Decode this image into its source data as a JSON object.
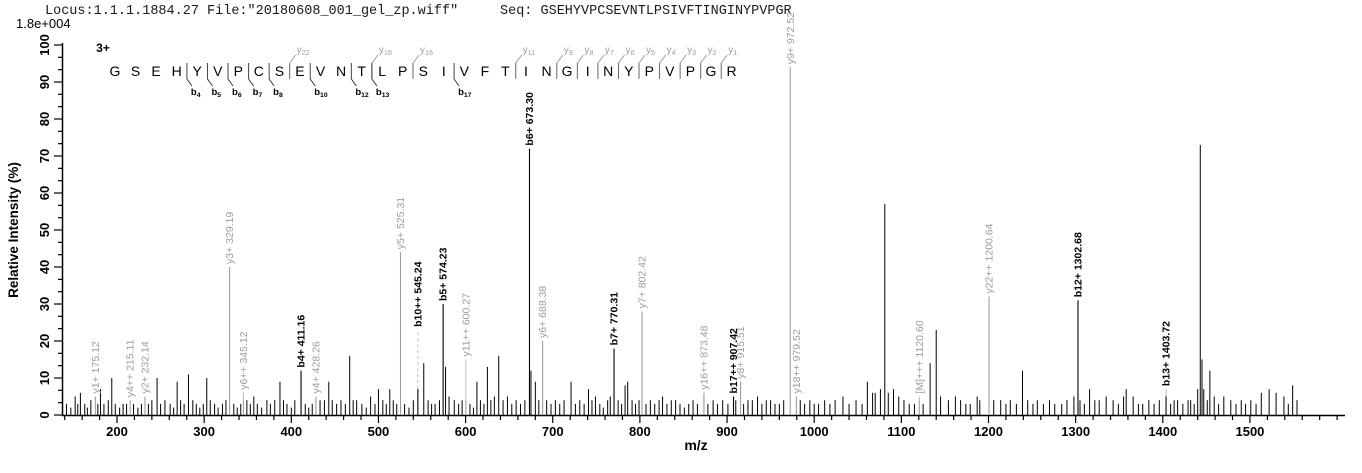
{
  "header": {
    "locus_file": "Locus:1.1.1.1884.27 File:\"20180608_001_gel_zp.wiff\"",
    "seq_label": "Seq: GSEHYVPCSEVNTLPSIVFTINGINYPVPGR",
    "max_intensity": "1.8e+004"
  },
  "peptide": {
    "charge": "3+",
    "sequence": "GSEHYVPCSEVNTLPSIVFTINGINYPVPGR",
    "y_ions": [
      {
        "name": "y22",
        "after": 9
      },
      {
        "name": "y18",
        "after": 13
      },
      {
        "name": "y16",
        "after": 15
      },
      {
        "name": "y11",
        "after": 20
      },
      {
        "name": "y9",
        "after": 22
      },
      {
        "name": "y8",
        "after": 23
      },
      {
        "name": "y7",
        "after": 24
      },
      {
        "name": "y6",
        "after": 25
      },
      {
        "name": "y5",
        "after": 26
      },
      {
        "name": "y4",
        "after": 27
      },
      {
        "name": "y3",
        "after": 28
      },
      {
        "name": "y2",
        "after": 29
      },
      {
        "name": "y1",
        "after": 30
      }
    ],
    "b_ions": [
      {
        "name": "b4",
        "after": 4
      },
      {
        "name": "b5",
        "after": 5
      },
      {
        "name": "b6",
        "after": 6
      },
      {
        "name": "b7",
        "after": 7
      },
      {
        "name": "b8",
        "after": 8
      },
      {
        "name": "b10",
        "after": 10
      },
      {
        "name": "b12",
        "after": 12
      },
      {
        "name": "b13",
        "after": 13
      },
      {
        "name": "b17",
        "after": 17
      }
    ]
  },
  "colors": {
    "y_ion": "#9d9d9d",
    "b_ion": "#000000",
    "precursor": "#9d9d9d",
    "noise": "#000000",
    "leader": "#b3b3b3",
    "background": "#ffffff"
  },
  "chart_data": {
    "type": "bar",
    "subtype": "ms2-stick-spectrum",
    "xlabel": "m/z",
    "ylabel": "Relative  Intensity (%)",
    "xlim": [
      137,
      1610
    ],
    "ylim": [
      0,
      100
    ],
    "x_major_ticks": [
      200,
      300,
      400,
      500,
      600,
      700,
      800,
      900,
      1000,
      1100,
      1200,
      1300,
      1400,
      1500
    ],
    "x_minor_step": 20,
    "y_major_ticks": [
      0,
      10,
      20,
      30,
      40,
      50,
      60,
      70,
      80,
      90,
      100
    ],
    "intensity_scale_max": "1.8e+004",
    "legend": "none",
    "grid": false,
    "labeled_peaks": [
      {
        "ion": "y1+",
        "mz": 175.12,
        "intensity": 5,
        "series": "y"
      },
      {
        "ion": "y4++",
        "mz": 215.11,
        "intensity": 4,
        "series": "y"
      },
      {
        "ion": "y2+",
        "mz": 232.14,
        "intensity": 5,
        "series": "y"
      },
      {
        "ion": "y3+",
        "mz": 329.19,
        "intensity": 40,
        "series": "y"
      },
      {
        "ion": "y6++",
        "mz": 345.12,
        "intensity": 4,
        "series": "y",
        "label_base": 6
      },
      {
        "ion": "b4+",
        "mz": 411.16,
        "intensity": 12,
        "series": "b"
      },
      {
        "ion": "y4+",
        "mz": 428.26,
        "intensity": 5,
        "series": "y"
      },
      {
        "ion": "y5+",
        "mz": 525.31,
        "intensity": 44,
        "series": "y"
      },
      {
        "ion": "b10++",
        "mz": 545.24,
        "intensity": 7,
        "series": "b",
        "label_base": 23,
        "dashed": true
      },
      {
        "ion": "b5+",
        "mz": 574.23,
        "intensity": 30,
        "series": "b"
      },
      {
        "ion": "y11++",
        "mz": 600.27,
        "intensity": 4,
        "series": "y",
        "label_base": 15
      },
      {
        "ion": "b6+",
        "mz": 673.3,
        "intensity": 72,
        "series": "b"
      },
      {
        "ion": "y6+",
        "mz": 688.38,
        "intensity": 20,
        "series": "y"
      },
      {
        "ion": "b7+",
        "mz": 770.31,
        "intensity": 18,
        "series": "b"
      },
      {
        "ion": "y7+",
        "mz": 802.42,
        "intensity": 28,
        "series": "y"
      },
      {
        "ion": "y16++",
        "mz": 873.48,
        "intensity": 6,
        "series": "y"
      },
      {
        "ion": "b17++",
        "mz": 907.42,
        "intensity": 5,
        "series": "b"
      },
      {
        "ion": "y8+",
        "mz": 915.51,
        "intensity": 9,
        "series": "y"
      },
      {
        "ion": "y9+",
        "mz": 972.52,
        "intensity": 94,
        "series": "y"
      },
      {
        "ion": "y18++",
        "mz": 979.52,
        "intensity": 5,
        "series": "y"
      },
      {
        "ion": "[M]+++",
        "mz": 1120.6,
        "intensity": 4,
        "series": "M",
        "label_base": 5
      },
      {
        "ion": "y22++",
        "mz": 1200.64,
        "intensity": 32,
        "series": "y"
      },
      {
        "ion": "b12+",
        "mz": 1302.68,
        "intensity": 31,
        "series": "b"
      },
      {
        "ion": "b13+",
        "mz": 1403.72,
        "intensity": 5,
        "series": "b",
        "label_base": 7
      }
    ],
    "unlabeled_peaks": [
      [
        142,
        3
      ],
      [
        147,
        2
      ],
      [
        152,
        5
      ],
      [
        155,
        3
      ],
      [
        158,
        6
      ],
      [
        163,
        3
      ],
      [
        166,
        2
      ],
      [
        170,
        4
      ],
      [
        178,
        3
      ],
      [
        181,
        7
      ],
      [
        185,
        3
      ],
      [
        190,
        4
      ],
      [
        194,
        10
      ],
      [
        198,
        3
      ],
      [
        203,
        2
      ],
      [
        207,
        3
      ],
      [
        211,
        3
      ],
      [
        219,
        3
      ],
      [
        224,
        2
      ],
      [
        228,
        3
      ],
      [
        236,
        3
      ],
      [
        240,
        4
      ],
      [
        246,
        10
      ],
      [
        250,
        3
      ],
      [
        255,
        4
      ],
      [
        261,
        3
      ],
      [
        265,
        2
      ],
      [
        269,
        9
      ],
      [
        273,
        4
      ],
      [
        277,
        3
      ],
      [
        282,
        11
      ],
      [
        287,
        4
      ],
      [
        291,
        3
      ],
      [
        295,
        2
      ],
      [
        299,
        3
      ],
      [
        303,
        10
      ],
      [
        307,
        4
      ],
      [
        312,
        3
      ],
      [
        316,
        2
      ],
      [
        321,
        3
      ],
      [
        325,
        4
      ],
      [
        334,
        3
      ],
      [
        338,
        2
      ],
      [
        342,
        3
      ],
      [
        349,
        4
      ],
      [
        353,
        3
      ],
      [
        357,
        5
      ],
      [
        361,
        3
      ],
      [
        366,
        2
      ],
      [
        372,
        4
      ],
      [
        376,
        3
      ],
      [
        381,
        4
      ],
      [
        387,
        9
      ],
      [
        391,
        4
      ],
      [
        395,
        3
      ],
      [
        400,
        2
      ],
      [
        404,
        4
      ],
      [
        416,
        3
      ],
      [
        420,
        2
      ],
      [
        424,
        3
      ],
      [
        433,
        4
      ],
      [
        438,
        4
      ],
      [
        443,
        9
      ],
      [
        447,
        4
      ],
      [
        452,
        3
      ],
      [
        457,
        4
      ],
      [
        462,
        3
      ],
      [
        467,
        16
      ],
      [
        471,
        4
      ],
      [
        475,
        4
      ],
      [
        481,
        3
      ],
      [
        486,
        2
      ],
      [
        491,
        5
      ],
      [
        496,
        3
      ],
      [
        500,
        7
      ],
      [
        505,
        4
      ],
      [
        509,
        3
      ],
      [
        513,
        7
      ],
      [
        517,
        4
      ],
      [
        521,
        3
      ],
      [
        530,
        3
      ],
      [
        535,
        2
      ],
      [
        540,
        4
      ],
      [
        552,
        14
      ],
      [
        557,
        4
      ],
      [
        561,
        3
      ],
      [
        565,
        3
      ],
      [
        570,
        4
      ],
      [
        577,
        13
      ],
      [
        581,
        5
      ],
      [
        587,
        4
      ],
      [
        592,
        3
      ],
      [
        596,
        4
      ],
      [
        605,
        3
      ],
      [
        609,
        2
      ],
      [
        613,
        9
      ],
      [
        617,
        4
      ],
      [
        621,
        3
      ],
      [
        625,
        13
      ],
      [
        629,
        4
      ],
      [
        633,
        5
      ],
      [
        638,
        16
      ],
      [
        643,
        4
      ],
      [
        648,
        5
      ],
      [
        653,
        3
      ],
      [
        658,
        4
      ],
      [
        663,
        3
      ],
      [
        668,
        4
      ],
      [
        675,
        12
      ],
      [
        680,
        9
      ],
      [
        684,
        4
      ],
      [
        693,
        4
      ],
      [
        698,
        3
      ],
      [
        703,
        4
      ],
      [
        708,
        3
      ],
      [
        713,
        4
      ],
      [
        721,
        9
      ],
      [
        726,
        3
      ],
      [
        731,
        4
      ],
      [
        736,
        3
      ],
      [
        741,
        7
      ],
      [
        745,
        4
      ],
      [
        749,
        5
      ],
      [
        754,
        3
      ],
      [
        758,
        2
      ],
      [
        763,
        4
      ],
      [
        766,
        5
      ],
      [
        775,
        4
      ],
      [
        779,
        3
      ],
      [
        783,
        8
      ],
      [
        786,
        9
      ],
      [
        791,
        4
      ],
      [
        795,
        3
      ],
      [
        799,
        4
      ],
      [
        807,
        3
      ],
      [
        812,
        4
      ],
      [
        817,
        3
      ],
      [
        822,
        4
      ],
      [
        826,
        5
      ],
      [
        831,
        3
      ],
      [
        836,
        4
      ],
      [
        841,
        4
      ],
      [
        846,
        3
      ],
      [
        851,
        2
      ],
      [
        856,
        3
      ],
      [
        861,
        4
      ],
      [
        866,
        3
      ],
      [
        878,
        3
      ],
      [
        884,
        4
      ],
      [
        889,
        3
      ],
      [
        895,
        4
      ],
      [
        901,
        3
      ],
      [
        910,
        4
      ],
      [
        919,
        3
      ],
      [
        924,
        4
      ],
      [
        929,
        4
      ],
      [
        935,
        5
      ],
      [
        940,
        3
      ],
      [
        945,
        4
      ],
      [
        950,
        4
      ],
      [
        955,
        3
      ],
      [
        960,
        3
      ],
      [
        965,
        4
      ],
      [
        984,
        4
      ],
      [
        989,
        3
      ],
      [
        995,
        4
      ],
      [
        1000,
        3
      ],
      [
        1005,
        3
      ],
      [
        1012,
        4
      ],
      [
        1018,
        3
      ],
      [
        1024,
        4
      ],
      [
        1033,
        5
      ],
      [
        1040,
        3
      ],
      [
        1048,
        4
      ],
      [
        1055,
        3
      ],
      [
        1061,
        9
      ],
      [
        1067,
        6
      ],
      [
        1070,
        6
      ],
      [
        1076,
        7
      ],
      [
        1081,
        57
      ],
      [
        1085,
        6
      ],
      [
        1091,
        7
      ],
      [
        1097,
        5
      ],
      [
        1103,
        4
      ],
      [
        1109,
        3
      ],
      [
        1115,
        3
      ],
      [
        1125,
        3
      ],
      [
        1133,
        14
      ],
      [
        1140,
        23
      ],
      [
        1145,
        5
      ],
      [
        1154,
        4
      ],
      [
        1162,
        5
      ],
      [
        1168,
        4
      ],
      [
        1174,
        3
      ],
      [
        1179,
        3
      ],
      [
        1187,
        5
      ],
      [
        1190,
        4
      ],
      [
        1206,
        4
      ],
      [
        1214,
        4
      ],
      [
        1220,
        3
      ],
      [
        1225,
        4
      ],
      [
        1232,
        3
      ],
      [
        1239,
        12
      ],
      [
        1245,
        4
      ],
      [
        1251,
        3
      ],
      [
        1256,
        4
      ],
      [
        1263,
        3
      ],
      [
        1270,
        4
      ],
      [
        1276,
        3
      ],
      [
        1284,
        3
      ],
      [
        1290,
        4
      ],
      [
        1298,
        5
      ],
      [
        1305,
        4
      ],
      [
        1310,
        3
      ],
      [
        1316,
        7
      ],
      [
        1322,
        4
      ],
      [
        1327,
        4
      ],
      [
        1335,
        5
      ],
      [
        1343,
        4
      ],
      [
        1349,
        3
      ],
      [
        1355,
        5
      ],
      [
        1358,
        7
      ],
      [
        1366,
        5
      ],
      [
        1372,
        3
      ],
      [
        1377,
        3
      ],
      [
        1384,
        4
      ],
      [
        1390,
        3
      ],
      [
        1396,
        4
      ],
      [
        1409,
        3
      ],
      [
        1413,
        4
      ],
      [
        1417,
        4
      ],
      [
        1423,
        3
      ],
      [
        1429,
        4
      ],
      [
        1432,
        4
      ],
      [
        1436,
        3
      ],
      [
        1440,
        7
      ],
      [
        1443,
        73
      ],
      [
        1445,
        15
      ],
      [
        1447,
        7
      ],
      [
        1451,
        4
      ],
      [
        1454,
        12
      ],
      [
        1459,
        5
      ],
      [
        1464,
        3
      ],
      [
        1470,
        5
      ],
      [
        1478,
        4
      ],
      [
        1484,
        3
      ],
      [
        1490,
        4
      ],
      [
        1495,
        3
      ],
      [
        1501,
        4
      ],
      [
        1507,
        3
      ],
      [
        1513,
        6
      ],
      [
        1522,
        7
      ],
      [
        1530,
        6
      ],
      [
        1539,
        5
      ],
      [
        1544,
        3
      ],
      [
        1549,
        8
      ],
      [
        1554,
        4
      ]
    ]
  }
}
